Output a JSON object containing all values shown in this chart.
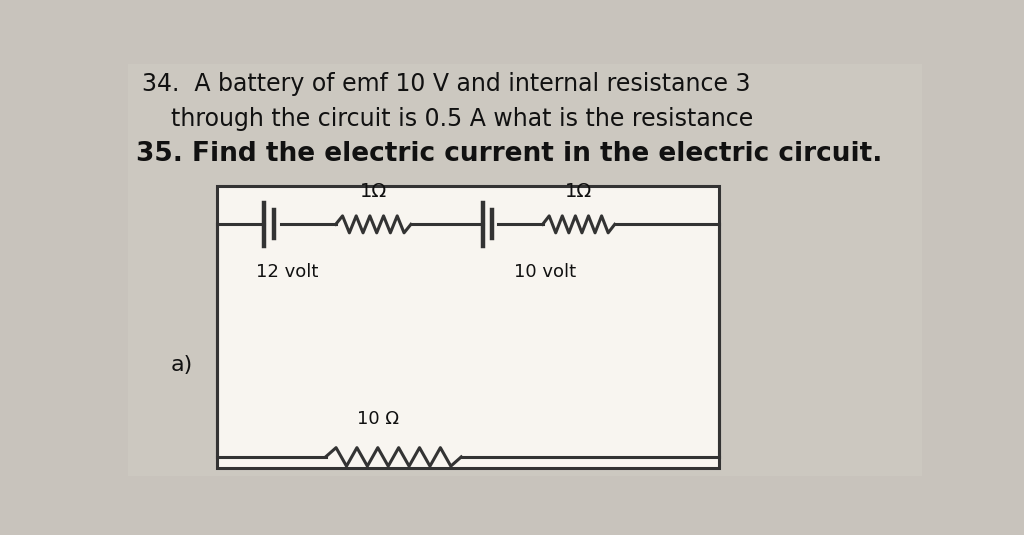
{
  "bg_color_top": "#c8c3bc",
  "bg_color_bot": "#c8c3bc",
  "circuit_bg": "#f8f5f0",
  "text_color": "#111111",
  "line_color": "#333333",
  "title_line1": "34.  A battery of emf 10 V and internal resistance 3",
  "title_line2": "through the circuit is 0.5 A what is the resistance",
  "title_line3": "35. Find the electric current in the electric circuit.",
  "label_12v": "12 volt",
  "label_10v": "10 volt",
  "label_r1": "1Ω",
  "label_r2": "1Ω",
  "label_r3": "10 Ω",
  "label_a": "a)",
  "fig_width": 10.24,
  "fig_height": 5.35,
  "dpi": 100
}
